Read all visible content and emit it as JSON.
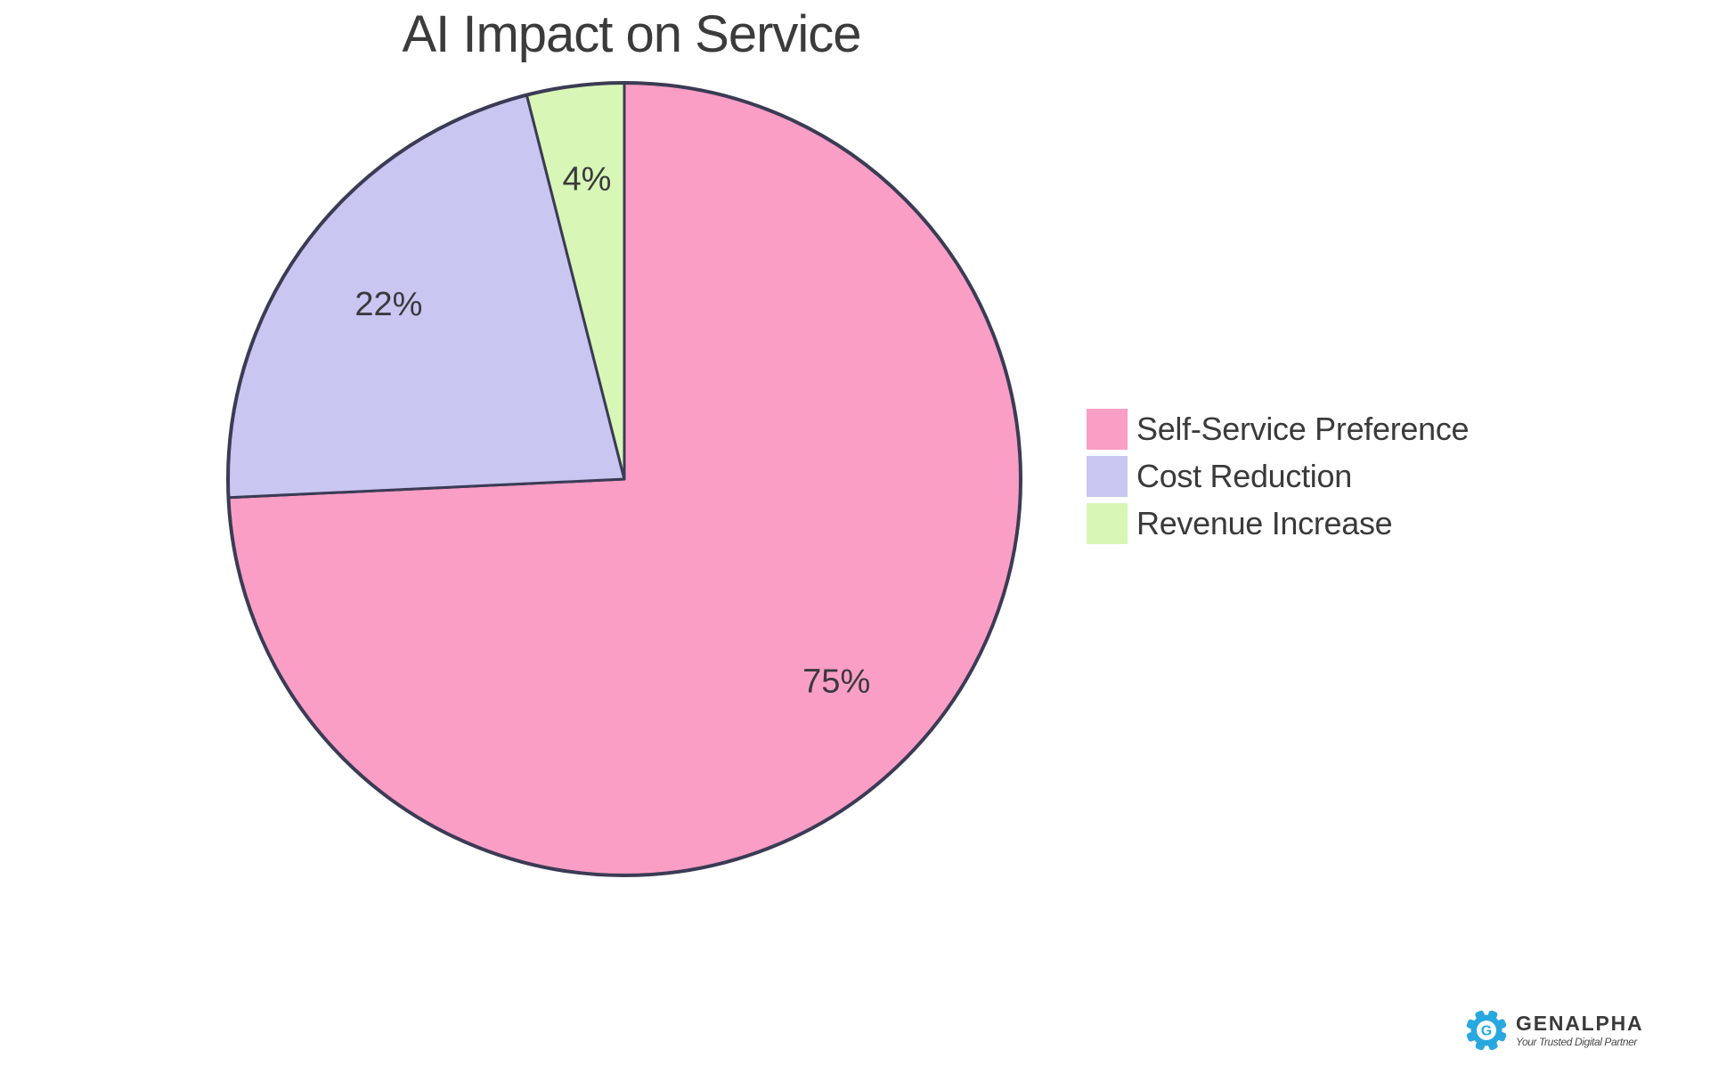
{
  "title": "AI Impact on Service",
  "chart_data": {
    "type": "pie",
    "labels": [
      "Self-Service Preference",
      "Cost Reduction",
      "Revenue Increase"
    ],
    "values": [
      75,
      22,
      4
    ],
    "value_labels": [
      "75%",
      "22%",
      "4%"
    ],
    "colors": [
      "#FA9EC5",
      "#C9C6F1",
      "#D8F6B6"
    ],
    "edge_color": "#3B3B55",
    "label_color": "#3a3a3e",
    "start_angle": "top",
    "direction": "clockwise",
    "legend_position": "right"
  },
  "logo": {
    "name": "GENALPHA",
    "tagline": "Your Trusted Digital Partner",
    "brand_color": "#29A8E0"
  }
}
